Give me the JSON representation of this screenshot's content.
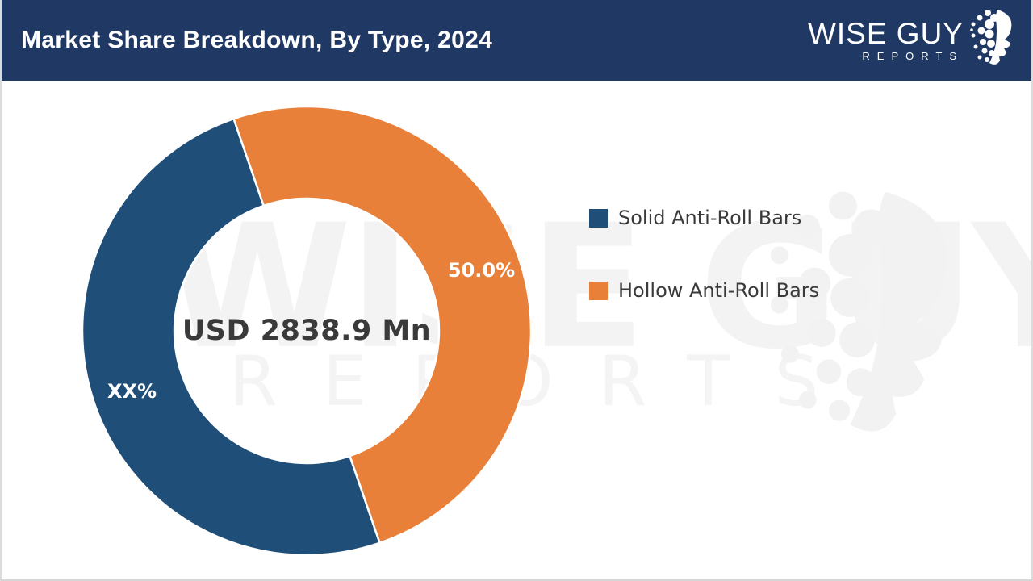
{
  "header": {
    "title": "Market Share Breakdown, By Type, 2024",
    "logo": {
      "line1": "WISE GUY",
      "line2": "REPORTS"
    }
  },
  "watermark": {
    "line1": "WISE GUY",
    "line2": "REPORTS"
  },
  "chart_data": {
    "type": "pie",
    "subtype": "donut",
    "title": "Market Share Breakdown, By Type, 2024",
    "center_label": "USD 2838.9 Mn",
    "start_angle_deg": -19,
    "outer_radius": 278,
    "inner_radius": 164,
    "values": [
      50,
      50
    ],
    "segments": [
      {
        "label": "Hollow Anti-Roll Bars",
        "value": 50,
        "sweep_deg": 180,
        "share_label": "50.0%",
        "color": "#E8803A"
      },
      {
        "label": "Solid Anti-Roll Bars",
        "value": 50,
        "sweep_deg": 180,
        "share_label": "XX%",
        "color": "#1F4E79"
      }
    ],
    "legend_position": "right"
  },
  "legend": {
    "items": [
      {
        "label": "Solid Anti-Roll Bars",
        "color": "#1F4E79"
      },
      {
        "label": "Hollow Anti-Roll Bars",
        "color": "#E8803A"
      }
    ]
  },
  "colors": {
    "header_bg": "#203864",
    "blue": "#1F4E79",
    "orange": "#E8803A",
    "center_text": "#3A3A3A",
    "watermark": "#F3F3F3",
    "border": "#DCDCDC"
  }
}
